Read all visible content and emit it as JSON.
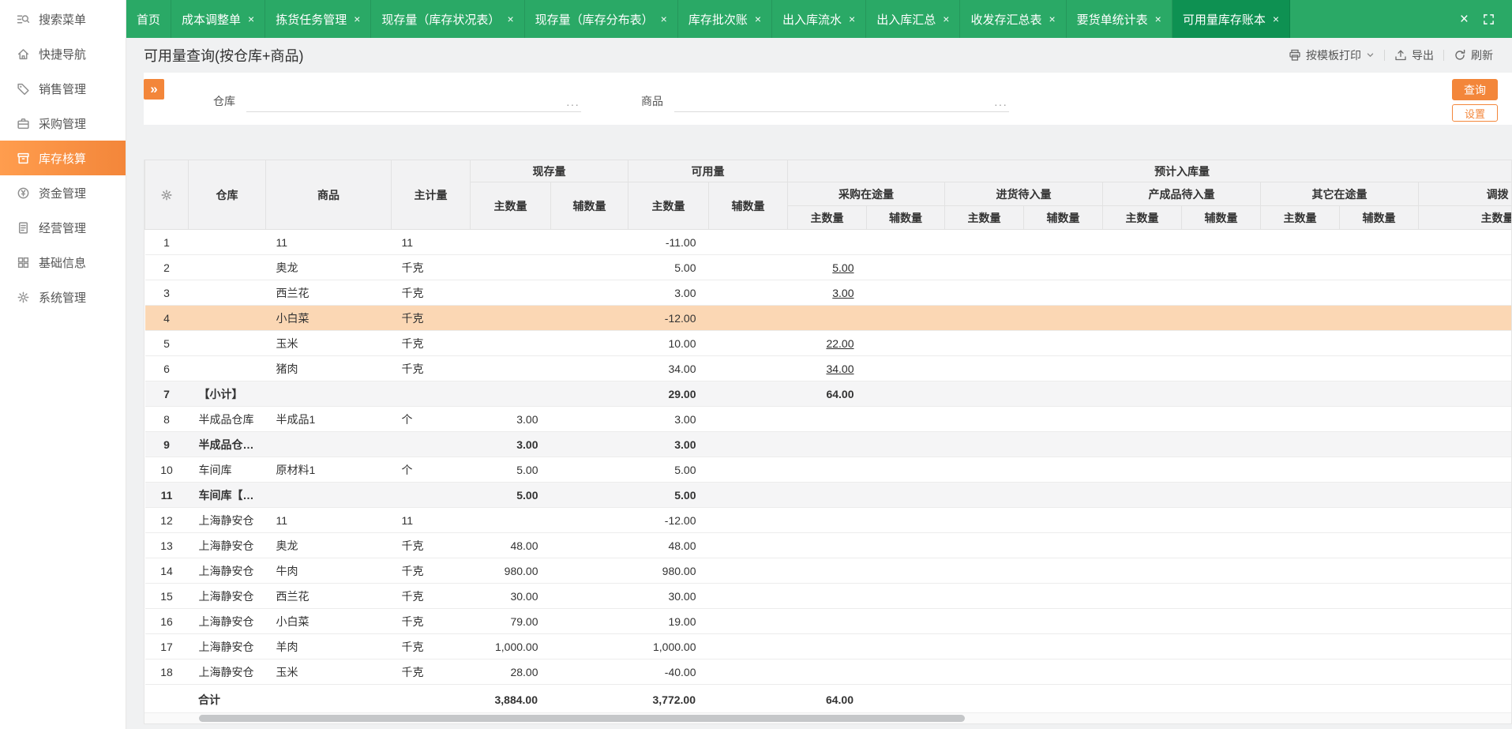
{
  "colors": {
    "primary_green": "#2aa966",
    "active_tab_green": "#0e9152",
    "accent_orange": "#f3863a",
    "accent_orange_light": "#ff9d4e",
    "negative_red": "#e23b30",
    "selected_row_bg": "#fbd7b4",
    "total_row_bg": "#fcf5d4"
  },
  "tabs": {
    "active_index": 10,
    "close_glyph": "×",
    "items": [
      {
        "label": "首页",
        "closable": false
      },
      {
        "label": "成本调整单",
        "closable": true
      },
      {
        "label": "拣货任务管理",
        "closable": true
      },
      {
        "label": "现存量（库存状况表）",
        "closable": true
      },
      {
        "label": "现存量（库存分布表）",
        "closable": true
      },
      {
        "label": "库存批次账",
        "closable": true
      },
      {
        "label": "出入库流水",
        "closable": true
      },
      {
        "label": "出入库汇总",
        "closable": true
      },
      {
        "label": "收发存汇总表",
        "closable": true
      },
      {
        "label": "要货单统计表",
        "closable": true
      },
      {
        "label": "可用量库存账本",
        "closable": true
      }
    ]
  },
  "window_controls": {
    "close_glyph": "×"
  },
  "sidebar": {
    "active_index": 4,
    "items": [
      {
        "label": "搜索菜单"
      },
      {
        "label": "快捷导航"
      },
      {
        "label": "销售管理"
      },
      {
        "label": "采购管理"
      },
      {
        "label": "库存核算"
      },
      {
        "label": "资金管理"
      },
      {
        "label": "经营管理"
      },
      {
        "label": "基础信息"
      },
      {
        "label": "系统管理"
      }
    ]
  },
  "page": {
    "title": "可用量查询(按仓库+商品)"
  },
  "toolbar": {
    "print": "按模板打印",
    "export": "导出",
    "refresh": "刷新"
  },
  "filters": {
    "expand_glyph": "»",
    "warehouse_label": "仓库",
    "product_label": "商品",
    "warehouse_value": "",
    "product_value": "",
    "more_glyph": "···",
    "query": "查询",
    "settings": "设置"
  },
  "table": {
    "header": {
      "warehouse": "仓库",
      "product": "商品",
      "unit": "主计量",
      "main_qty": "主数量",
      "aux_qty": "辅数量",
      "groups": {
        "onhand": "现存量",
        "available": "可用量",
        "expected": "预计入库量"
      },
      "subgroups": {
        "purchase": "采购在途量",
        "incoming": "进货待入量",
        "finished": "产成品待入量",
        "other": "其它在途量",
        "transfer": "调拨"
      }
    },
    "rows": [
      {
        "seq": "1",
        "warehouse": "",
        "product": "11",
        "unit": "11",
        "avail_main": "-11.00",
        "neg": [
          "avail_main"
        ]
      },
      {
        "seq": "2",
        "warehouse": "",
        "product": "奥龙",
        "unit": "千克",
        "avail_main": "5.00",
        "purchase_main": "5.00",
        "link": [
          "purchase_main"
        ]
      },
      {
        "seq": "3",
        "warehouse": "",
        "product": "西兰花",
        "unit": "千克",
        "avail_main": "3.00",
        "purchase_main": "3.00",
        "link": [
          "purchase_main"
        ]
      },
      {
        "seq": "4",
        "warehouse": "",
        "product": "小白菜",
        "unit": "千克",
        "avail_main": "-12.00",
        "neg": [
          "avail_main"
        ],
        "selected": true
      },
      {
        "seq": "5",
        "warehouse": "",
        "product": "玉米",
        "unit": "千克",
        "avail_main": "10.00",
        "purchase_main": "22.00",
        "link": [
          "purchase_main"
        ]
      },
      {
        "seq": "6",
        "warehouse": "",
        "product": "猪肉",
        "unit": "千克",
        "avail_main": "34.00",
        "purchase_main": "34.00",
        "link": [
          "purchase_main"
        ]
      },
      {
        "seq": "7",
        "warehouse": "【小计】",
        "avail_main": "29.00",
        "purchase_main": "64.00",
        "subtotal": true
      },
      {
        "seq": "8",
        "warehouse": "半成品仓库",
        "product": "半成品1",
        "unit": "个",
        "onhand_main": "3.00",
        "avail_main": "3.00"
      },
      {
        "seq": "9",
        "warehouse": "半成品仓库...",
        "onhand_main": "3.00",
        "avail_main": "3.00",
        "subtotal": true
      },
      {
        "seq": "10",
        "warehouse": "车间库",
        "product": "原材料1",
        "unit": "个",
        "onhand_main": "5.00",
        "avail_main": "5.00"
      },
      {
        "seq": "11",
        "warehouse": "车间库【小...",
        "onhand_main": "5.00",
        "avail_main": "5.00",
        "subtotal": true
      },
      {
        "seq": "12",
        "warehouse": "上海静安仓",
        "product": "11",
        "unit": "11",
        "avail_main": "-12.00",
        "neg": [
          "avail_main"
        ]
      },
      {
        "seq": "13",
        "warehouse": "上海静安仓",
        "product": "奥龙",
        "unit": "千克",
        "onhand_main": "48.00",
        "avail_main": "48.00"
      },
      {
        "seq": "14",
        "warehouse": "上海静安仓",
        "product": "牛肉",
        "unit": "千克",
        "onhand_main": "980.00",
        "avail_main": "980.00"
      },
      {
        "seq": "15",
        "warehouse": "上海静安仓",
        "product": "西兰花",
        "unit": "千克",
        "onhand_main": "30.00",
        "avail_main": "30.00"
      },
      {
        "seq": "16",
        "warehouse": "上海静安仓",
        "product": "小白菜",
        "unit": "千克",
        "onhand_main": "79.00",
        "avail_main": "19.00"
      },
      {
        "seq": "17",
        "warehouse": "上海静安仓",
        "product": "羊肉",
        "unit": "千克",
        "onhand_main": "1,000.00",
        "avail_main": "1,000.00"
      },
      {
        "seq": "18",
        "warehouse": "上海静安仓",
        "product": "玉米",
        "unit": "千克",
        "onhand_main": "28.00",
        "avail_main": "-40.00",
        "neg": [
          "avail_main"
        ]
      }
    ],
    "footer": {
      "warehouse": "合计",
      "onhand_main": "3,884.00",
      "avail_main": "3,772.00",
      "purchase_main": "64.00"
    }
  }
}
